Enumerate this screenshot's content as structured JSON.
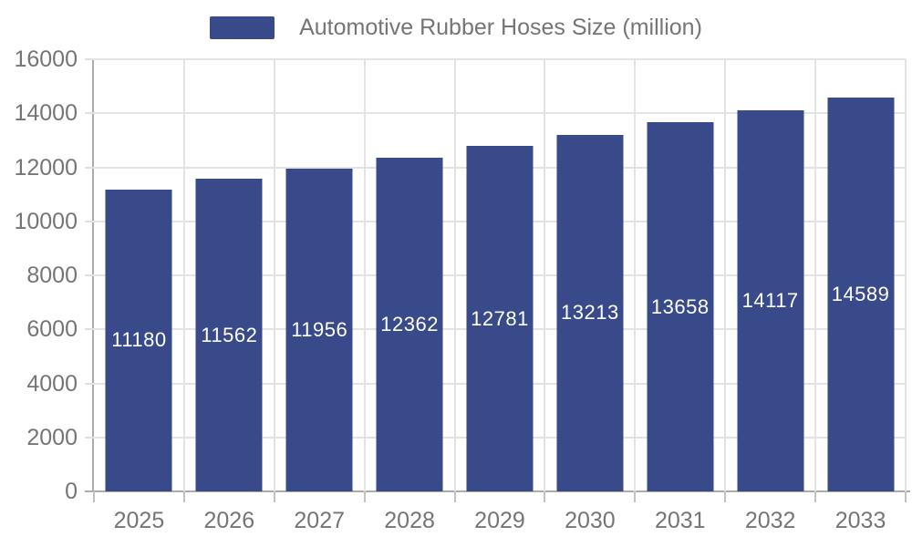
{
  "legend": {
    "items": [
      {
        "label": "Automotive Rubber Hoses Size (million)",
        "color": "#394A8A"
      }
    ],
    "position": "top-center"
  },
  "chart_data": {
    "type": "bar",
    "title": "Automotive Rubber Hoses Size (million)",
    "categories": [
      "2025",
      "2026",
      "2027",
      "2028",
      "2029",
      "2030",
      "2031",
      "2032",
      "2033"
    ],
    "series": [
      {
        "name": "Automotive Rubber Hoses Size (million)",
        "values": [
          11180,
          11562,
          11956,
          12362,
          12781,
          13213,
          13658,
          14117,
          14589
        ]
      }
    ],
    "data_labels": "inside-center-white",
    "xlabel": "",
    "ylabel": "",
    "ylim": [
      0,
      16000
    ],
    "yticks": [
      0,
      2000,
      4000,
      6000,
      8000,
      10000,
      12000,
      14000,
      16000
    ],
    "grid": "horizontal-and-vertical",
    "legend_position": "top"
  },
  "style": {
    "bar_color": "#394A8A",
    "bar_label_color": "#FFFFFF",
    "grid_color": "#E3E3E3",
    "axis_line_color": "#ACACAC",
    "y_tick_color": "#E0E0E0",
    "x_tick_color": "#C2C2C2",
    "text_color": "#757575",
    "background_color": "#FFFFFF"
  }
}
